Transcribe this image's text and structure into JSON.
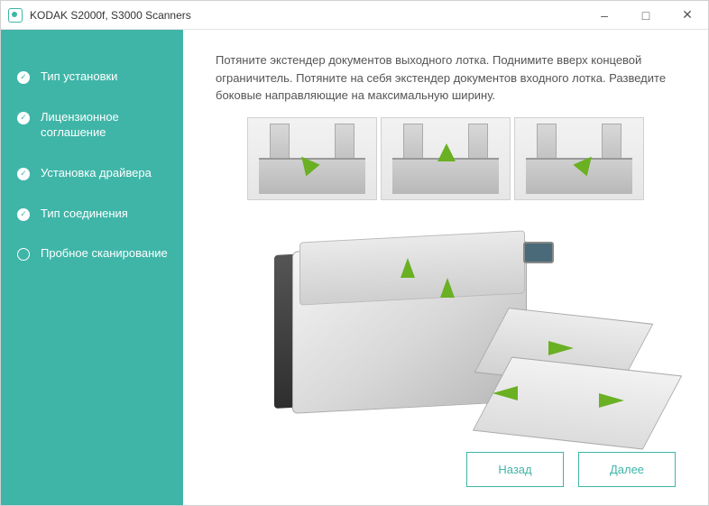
{
  "window": {
    "title": "KODAK S2000f, S3000 Scanners"
  },
  "sidebar": {
    "steps": [
      {
        "label": "Тип установки",
        "done": true
      },
      {
        "label": "Лицензионное соглашение",
        "done": true
      },
      {
        "label": "Установка драйвера",
        "done": true
      },
      {
        "label": "Тип соединения",
        "done": true
      },
      {
        "label": "Пробное сканирование",
        "done": false
      }
    ]
  },
  "main": {
    "instructions": "Потяните экстендер документов выходного лотка. Поднимите вверх концевой ограничитель. Потяните на себя экстендер документов входного лотка. Разведите боковые направляющие на максимальную ширину."
  },
  "footer": {
    "back_label": "Назад",
    "next_label": "Далее"
  },
  "colors": {
    "accent": "#3fb5a8",
    "arrow": "#6ab023"
  }
}
